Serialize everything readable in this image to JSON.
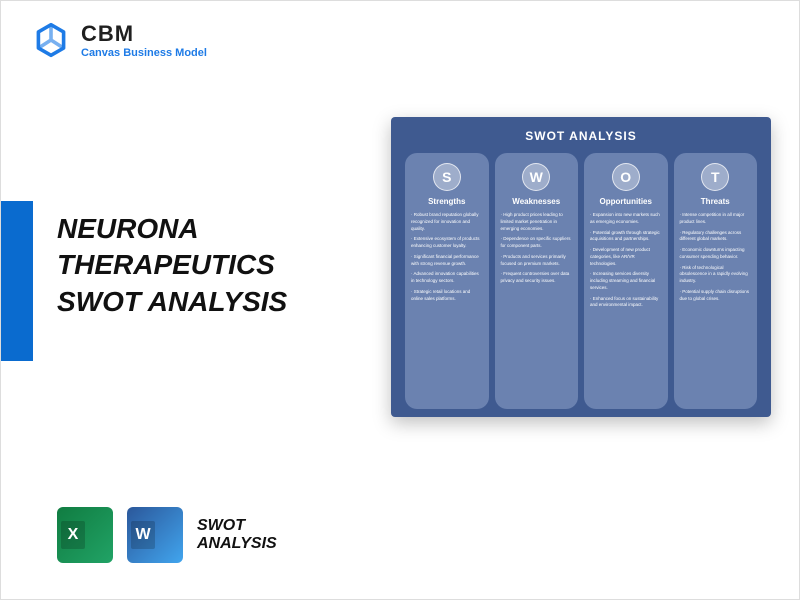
{
  "brand": {
    "name": "CBM",
    "tagline": "Canvas Business Model",
    "logo_color": "#1e7be6"
  },
  "accent_color": "#0a6bcf",
  "title": {
    "line1": "NEURONA",
    "line2": "THERAPEUTICS",
    "line3": "SWOT ANALYSIS"
  },
  "preview": {
    "title": "SWOT ANALYSIS",
    "bg_color": "#3f5a90",
    "col_color": "#6b82b0",
    "columns": [
      {
        "letter": "S",
        "label": "Strengths",
        "points": [
          "Robust brand reputation globally recognized for innovation and quality.",
          "Extensive ecosystem of products enhancing customer loyalty.",
          "Significant financial performance with strong revenue growth.",
          "Advanced innovation capabilities in technology sectors.",
          "Strategic retail locations and online sales platforms."
        ]
      },
      {
        "letter": "W",
        "label": "Weaknesses",
        "points": [
          "High product prices leading to limited market penetration in emerging economies.",
          "Dependence on specific suppliers for component parts.",
          "Products and services primarily focused on premium markets.",
          "Frequent controversies over data privacy and security issues."
        ]
      },
      {
        "letter": "O",
        "label": "Opportunities",
        "points": [
          "Expansion into new markets such as emerging economies.",
          "Potential growth through strategic acquisitions and partnerships.",
          "Development of new product categories, like AR/VR technologies.",
          "Increasing services diversity including streaming and financial services.",
          "Enhanced focus on sustainability and environmental impact."
        ]
      },
      {
        "letter": "T",
        "label": "Threats",
        "points": [
          "Intense competition in all major product lines.",
          "Regulatory challenges across different global markets.",
          "Economic downturns impacting consumer spending behavior.",
          "Risk of technological obsolescence in a rapidly evolving industry.",
          "Potential supply chain disruptions due to global crises."
        ]
      }
    ]
  },
  "footer": {
    "excel": "X",
    "word": "W",
    "label_line1": "SWOT",
    "label_line2": "ANALYSIS"
  }
}
